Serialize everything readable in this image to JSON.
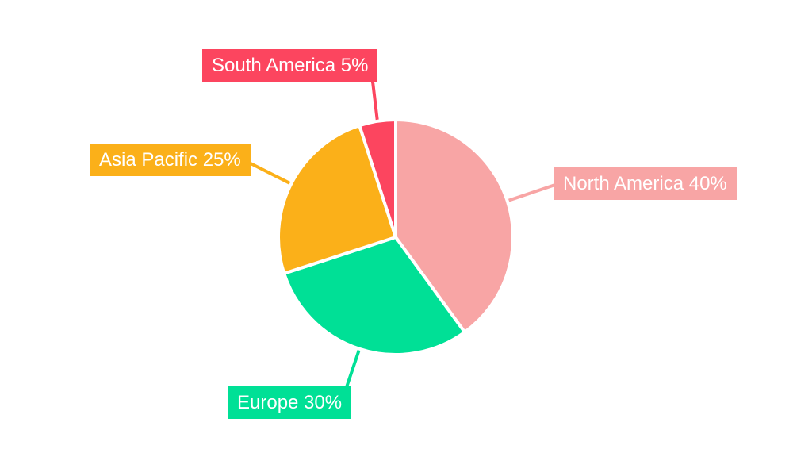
{
  "chart_data": {
    "type": "pie",
    "title": "",
    "legend": "none",
    "background_color": "#FFFFFF",
    "label_text_color": "#FFFFFF",
    "start_angle_deg": 0,
    "direction": "clockwise",
    "total": 100,
    "series": [
      {
        "name": "North America",
        "value": 40,
        "percent": "40%",
        "label": "North America 40%",
        "color": "#F8A5A5"
      },
      {
        "name": "Europe",
        "value": 30,
        "percent": "30%",
        "label": "Europe 30%",
        "color": "#00E096"
      },
      {
        "name": "Asia Pacific",
        "value": 25,
        "percent": "25%",
        "label": "Asia Pacific 25%",
        "color": "#FBB019"
      },
      {
        "name": "South America",
        "value": 5,
        "percent": "5%",
        "label": "South America 5%",
        "color": "#FC455F"
      }
    ]
  }
}
